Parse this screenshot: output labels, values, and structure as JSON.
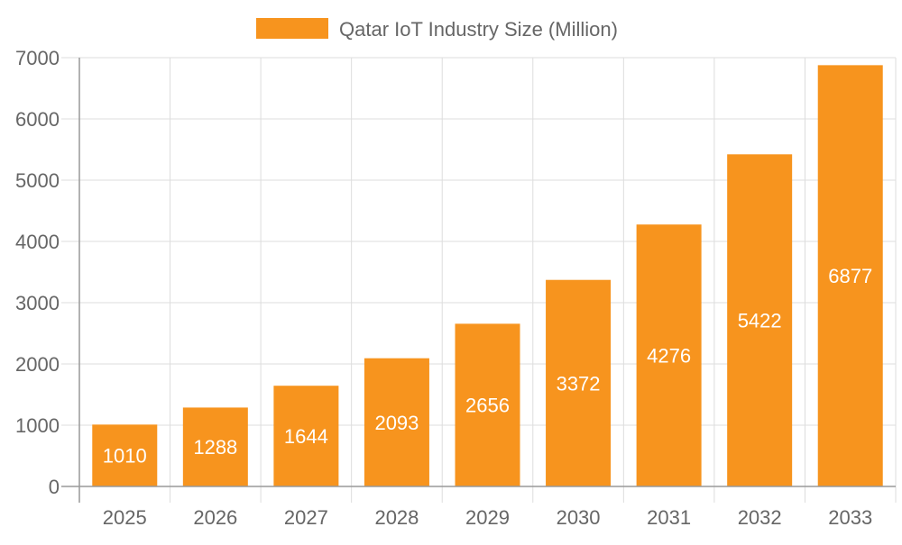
{
  "chart_data": {
    "type": "bar",
    "title": "",
    "xlabel": "",
    "ylabel": "",
    "categories": [
      "2025",
      "2026",
      "2027",
      "2028",
      "2029",
      "2030",
      "2031",
      "2032",
      "2033"
    ],
    "series": [
      {
        "name": "Qatar IoT Industry Size (Million)",
        "values": [
          1010,
          1288,
          1644,
          2093,
          2656,
          3372,
          4276,
          5422,
          6877
        ],
        "color": "#F7941E"
      }
    ],
    "ylim": [
      0,
      7000
    ],
    "yticks": [
      "0",
      "1000",
      "2000",
      "3000",
      "4000",
      "5000",
      "6000",
      "7000"
    ],
    "grid": true,
    "legend": "top",
    "data_labels": [
      "1010",
      "1288",
      "1644",
      "2093",
      "2656",
      "3372",
      "4276",
      "5422",
      "6877"
    ],
    "data_label_color": "#ffffff"
  }
}
